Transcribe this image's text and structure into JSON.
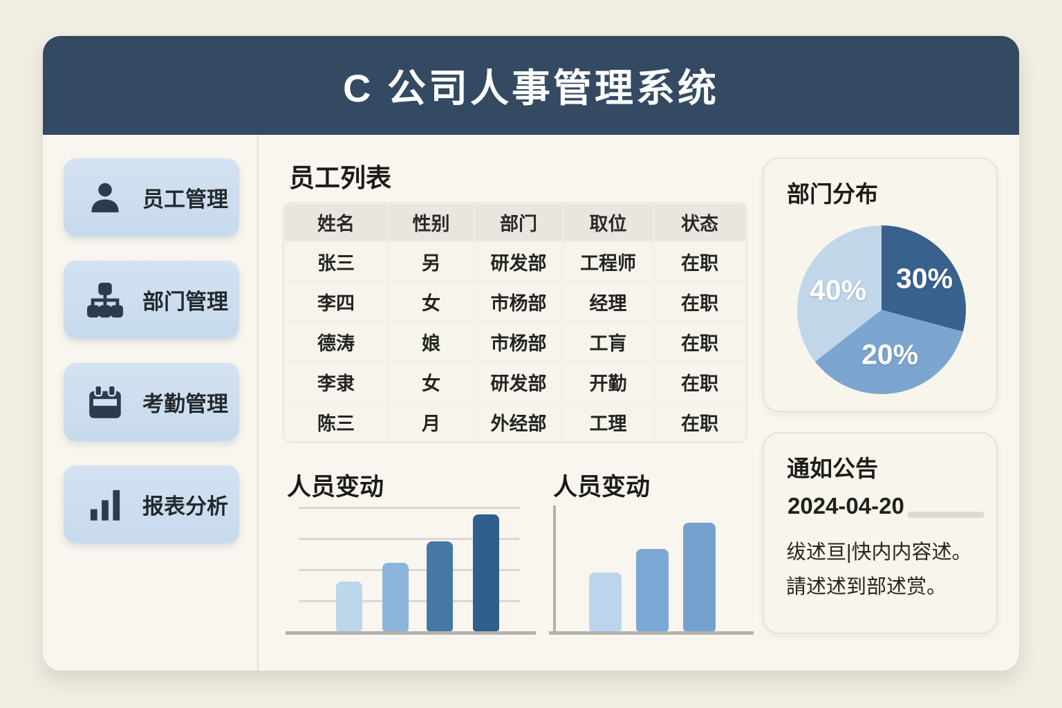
{
  "header": {
    "title": "C 公司人事管理系统"
  },
  "sidebar": {
    "items": [
      {
        "label": "员工管理",
        "icon": "person-icon"
      },
      {
        "label": "部门管理",
        "icon": "org-chart-icon"
      },
      {
        "label": "考勤管理",
        "icon": "calendar-icon"
      },
      {
        "label": "报表分析",
        "icon": "bar-chart-icon"
      }
    ]
  },
  "employee_table": {
    "title": "员工列表",
    "columns": [
      "姓名",
      "性别",
      "部门",
      "取位",
      "状态"
    ],
    "rows": [
      [
        "张三",
        "另",
        "研发部",
        "工程师",
        "在职"
      ],
      [
        "李四",
        "女",
        "市杨部",
        "经理",
        "在职"
      ],
      [
        "德涛",
        "娘",
        "市杨部",
        "工肓",
        "在职"
      ],
      [
        "李隶",
        "女",
        "研发部",
        "开勤",
        "在职"
      ],
      [
        "陈三",
        "月",
        "外经部",
        "工理",
        "在职"
      ]
    ]
  },
  "notice_card": {
    "title": "通如公告",
    "date": "2024-04-20",
    "lines": [
      "绂述亘|快内内容述。",
      "請述述到部述赏。"
    ]
  },
  "chart_data": [
    {
      "type": "pie",
      "title": "部门分布",
      "slices": [
        {
          "label": "30%",
          "value": 30,
          "color": "#39618e",
          "start": 0,
          "end": 105
        },
        {
          "label": "20%",
          "value": 20,
          "color": "#7ca6d0",
          "start": 105,
          "end": 232
        },
        {
          "label": "40%",
          "value": 40,
          "color": "#c2d6ea",
          "start": 232,
          "end": 360
        }
      ],
      "legend": "none",
      "labels_on_slices": true
    },
    {
      "type": "bar",
      "title": "人员变动",
      "categories": [
        "",
        "",
        "",
        ""
      ],
      "values": [
        40,
        55,
        72,
        94
      ],
      "colors": [
        "#bcd6ec",
        "#8cb4dd",
        "#4678a6",
        "#2f5f8d"
      ],
      "ylim": [
        0,
        100
      ],
      "grid": true,
      "xlabel": "",
      "ylabel": ""
    },
    {
      "type": "bar",
      "title": "人员变动",
      "categories": [
        "",
        "",
        ""
      ],
      "values": [
        47,
        66,
        87
      ],
      "colors": [
        "#bdd5ec",
        "#7aa7d4",
        "#74a2d0"
      ],
      "ylim": [
        0,
        100
      ],
      "grid": false,
      "xlabel": "",
      "ylabel": ""
    }
  ],
  "colors": {
    "header_navy": "#344a63",
    "page_background": "#f2eee4",
    "panel_background": "#f9f6ef",
    "sidebar_button_blue": "#cbddee",
    "icon_navy": "#2c3c50",
    "table_header_gray": "#e9e6df",
    "baseline_gray": "#b5b2a9"
  }
}
